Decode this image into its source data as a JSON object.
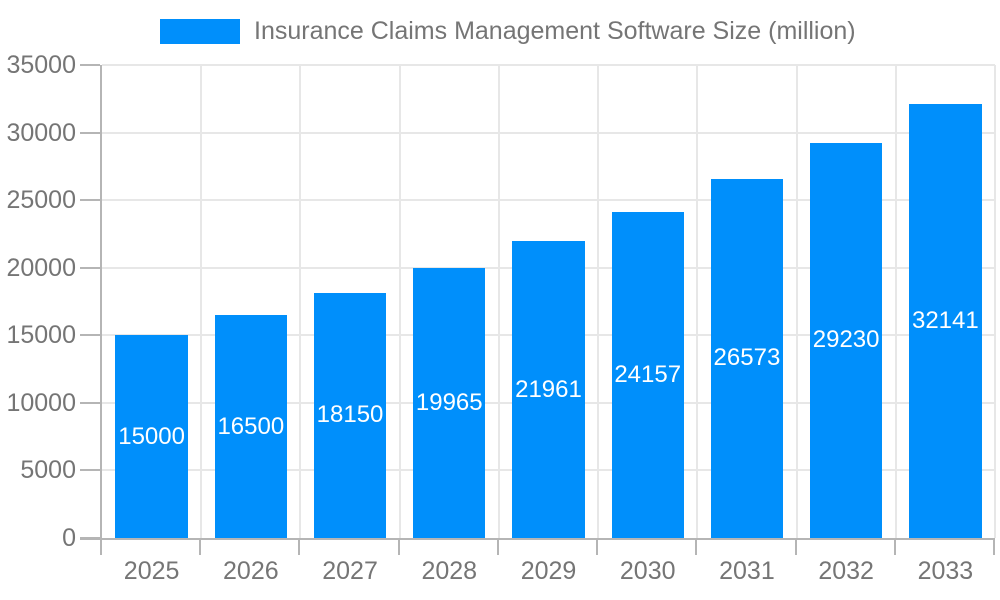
{
  "chart_data": {
    "type": "bar",
    "title": "Insurance Claims Management Software Size (million)",
    "categories": [
      "2025",
      "2026",
      "2027",
      "2028",
      "2029",
      "2030",
      "2031",
      "2032",
      "2033"
    ],
    "values": [
      15000,
      16500,
      18150,
      19965,
      21961,
      24157,
      26573,
      29230,
      32141
    ],
    "xlabel": "",
    "ylabel": "",
    "ylim": [
      0,
      35000
    ],
    "ytick_step": 5000,
    "y_tick_labels": [
      "0",
      "5000",
      "10000",
      "15000",
      "20000",
      "25000",
      "30000",
      "35000"
    ],
    "grid": true,
    "legend_position": "top",
    "colors": {
      "bar": "#008FFB",
      "bar_value_label": "#ffffff",
      "axis_text": "#757575",
      "grid_line": "#e7e7e7",
      "axis_line": "#b5b5b5",
      "background": "#ffffff"
    }
  }
}
